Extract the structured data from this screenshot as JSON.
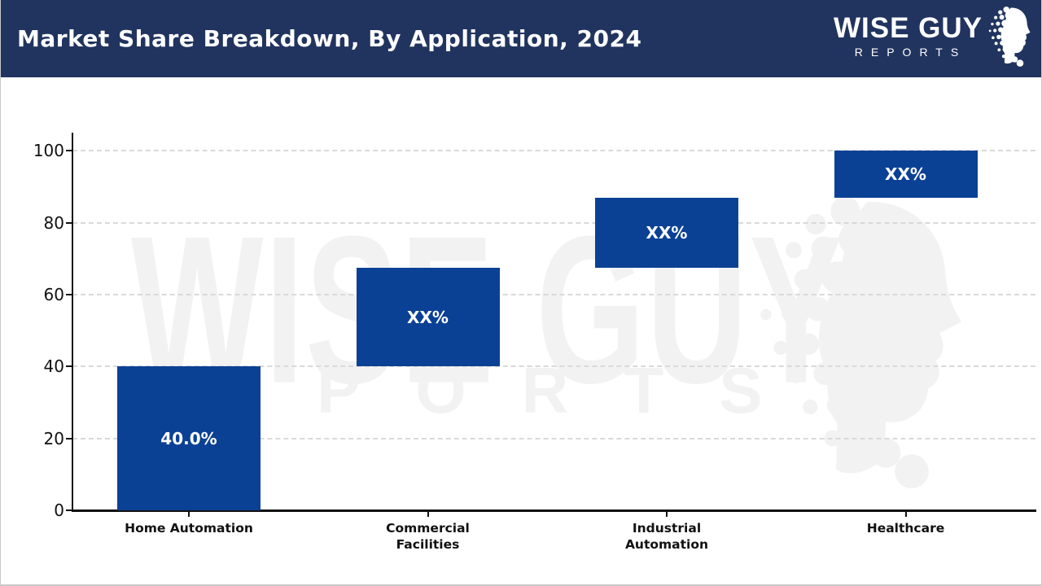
{
  "header": {
    "title": "Market Share Breakdown, By Application, 2024",
    "background_color": "#21345f",
    "logo": {
      "name": "WISE GUY",
      "tagline": "REPORTS"
    }
  },
  "watermark": {
    "line1": "WISE GUY",
    "line2": "PORTS"
  },
  "chart_data": {
    "type": "bar",
    "variant": "waterfall",
    "title": "Market Share Breakdown, By Application, 2024",
    "categories": [
      "Home Automation",
      "Commercial\nFacilities",
      "Industrial\nAutomation",
      "Healthcare"
    ],
    "segments": [
      {
        "category": "Home Automation",
        "start": 0,
        "end": 40,
        "label": "40.0%"
      },
      {
        "category": "Commercial Facilities",
        "start": 40,
        "end": 67.5,
        "label": "XX%"
      },
      {
        "category": "Industrial Automation",
        "start": 67.5,
        "end": 87,
        "label": "XX%"
      },
      {
        "category": "Healthcare",
        "start": 87,
        "end": 100,
        "label": "XX%"
      }
    ],
    "yticks": [
      0,
      20,
      40,
      60,
      80,
      100
    ],
    "ylim": [
      0,
      105
    ],
    "grid": {
      "axis": "y",
      "style": "dashed",
      "color": "#d9d9d9"
    },
    "legend": "none",
    "bar_color": "#0b4195",
    "bar_label_color": "#ffffff",
    "axis_color": "#111111",
    "tick_label_color": "#111111"
  }
}
